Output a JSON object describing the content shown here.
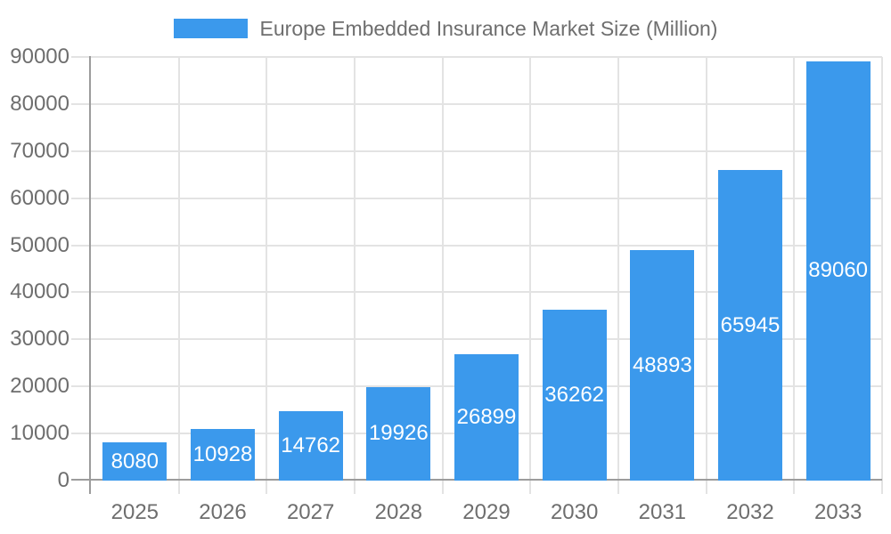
{
  "chart_data": {
    "type": "bar",
    "title": "Europe Embedded Insurance Market Size (Million)",
    "legend": {
      "label": "Europe Embedded Insurance Market Size (Million)",
      "position": "top"
    },
    "categories": [
      "2025",
      "2026",
      "2027",
      "2028",
      "2029",
      "2030",
      "2031",
      "2032",
      "2033"
    ],
    "series": [
      {
        "name": "Europe Embedded Insurance Market Size (Million)",
        "values": [
          8080,
          10928,
          14762,
          19926,
          26899,
          36262,
          48893,
          65945,
          89060
        ]
      }
    ],
    "value_labels_shown": true,
    "xlabel": "",
    "ylabel": "",
    "ylim": [
      0,
      90000
    ],
    "y_ticks": [
      0,
      10000,
      20000,
      30000,
      40000,
      50000,
      60000,
      70000,
      80000,
      90000
    ],
    "grid": true,
    "colors": {
      "bar": "#3B99EC",
      "value_label": "#FFFFFF",
      "axis_text": "#6E6E6E",
      "legend_text": "#6E6E6E",
      "gridline": "#E3E3E3",
      "axis_line": "#9C9C9C",
      "background": "#FFFFFF"
    }
  }
}
